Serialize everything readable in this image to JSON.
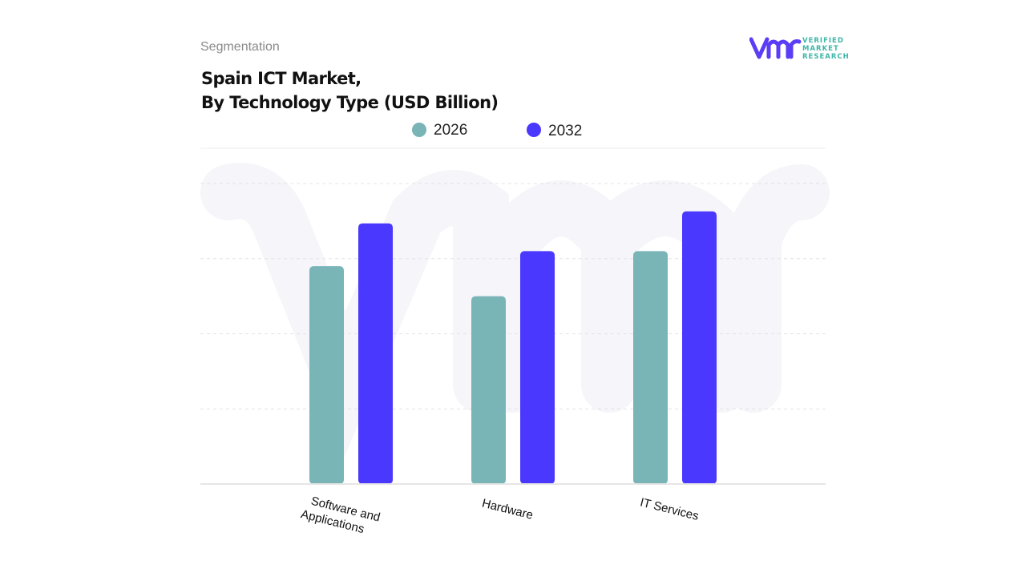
{
  "header": {
    "section": "Segmentation",
    "title_line1": "Spain ICT Market,",
    "title_line2": "By Technology Type (USD Billion)"
  },
  "logo": {
    "mark": "vmr",
    "text": [
      "VERIFIED",
      "MARKET",
      "RESEARCH"
    ],
    "color_mark": "#5b3df5",
    "color_text": "#3fb6a8"
  },
  "chart_data": {
    "type": "bar",
    "title": "Spain ICT Market, By Technology Type (USD Billion)",
    "categories": [
      "Software and Applications",
      "Hardware",
      "IT Services"
    ],
    "category_lines": [
      [
        "Software and",
        "Applications"
      ],
      [
        "Hardware"
      ],
      [
        "IT Services"
      ]
    ],
    "series": [
      {
        "name": "2026",
        "color": "#79b4b7",
        "values": [
          2.9,
          2.5,
          3.1
        ]
      },
      {
        "name": "2032",
        "color": "#4a38fe",
        "values": [
          3.47,
          3.1,
          3.63
        ]
      }
    ],
    "ylim": [
      0,
      4
    ],
    "grid": true,
    "y_tick_labels_shown": false,
    "legend_position": "top-center"
  }
}
